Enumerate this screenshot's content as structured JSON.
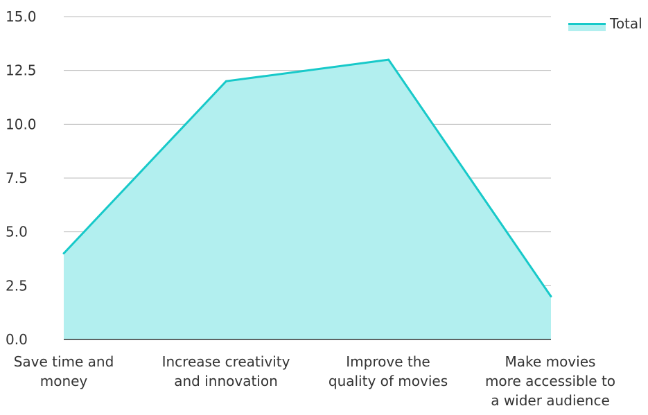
{
  "colors": {
    "line": "#17c9c9",
    "fill": "#b2efef",
    "grid": "#b8b8b8",
    "axis": "#333333",
    "text": "#333333"
  },
  "legend": {
    "label": "Total"
  },
  "chart_data": {
    "type": "area",
    "categories": [
      [
        "Save time and",
        "money"
      ],
      [
        "Increase creativity",
        "and innovation"
      ],
      [
        "Improve the",
        "quality of movies"
      ],
      [
        "Make movies",
        "more accessible to",
        "a wider audience"
      ]
    ],
    "series": [
      {
        "name": "Total",
        "values": [
          4,
          12,
          13,
          2
        ]
      }
    ],
    "yticks": [
      "0.0",
      "2.5",
      "5.0",
      "7.5",
      "10.0",
      "12.5",
      "15.0"
    ],
    "ylim": [
      0,
      15
    ],
    "grid": true,
    "legend_position": "top-right"
  }
}
